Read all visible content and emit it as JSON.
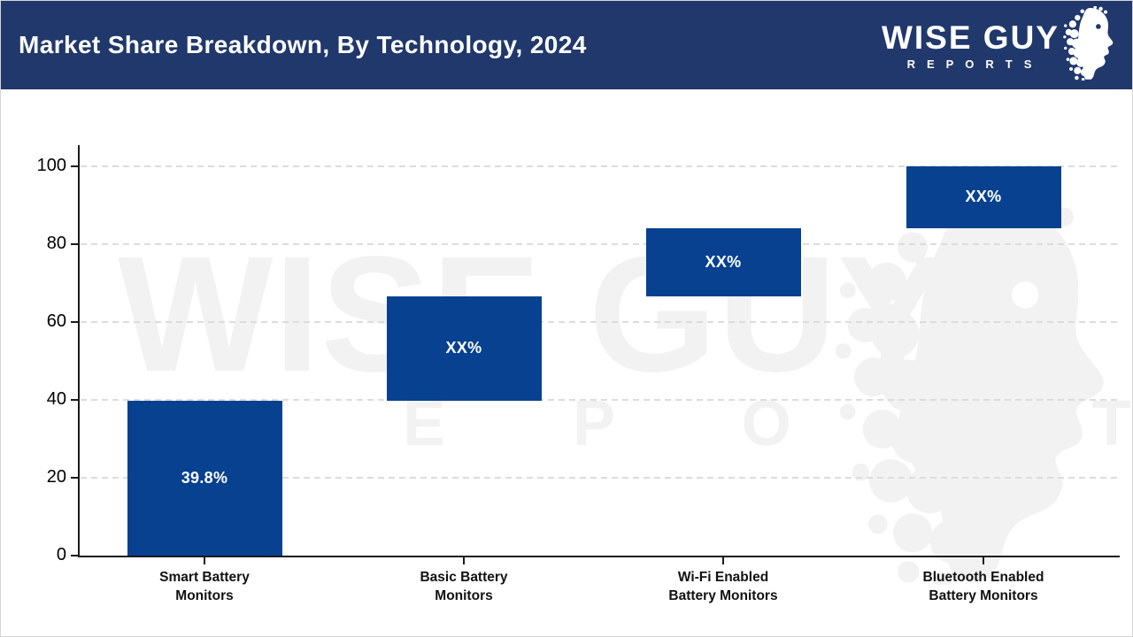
{
  "header": {
    "title": "Market Share Breakdown, By Technology, 2024",
    "logo": {
      "name": "WISE GUY",
      "subname": "REPORTS"
    }
  },
  "watermark": {
    "line1": "WISE GUY",
    "line2": "R E P O R T S"
  },
  "chart_data": {
    "type": "bar",
    "subtype": "waterfall",
    "title": "Market Share Breakdown, By Technology, 2024",
    "unit": "percent",
    "categories": [
      [
        "Smart Battery",
        "Monitors"
      ],
      [
        "Basic Battery",
        "Monitors"
      ],
      [
        "Wi-Fi Enabled",
        "Battery Monitors"
      ],
      [
        "Bluetooth Enabled",
        "Battery Monitors"
      ]
    ],
    "segments": [
      {
        "category": "Smart Battery Monitors",
        "start": 0,
        "end": 39.8,
        "label": "39.8%"
      },
      {
        "category": "Basic Battery Monitors",
        "start": 39.8,
        "end": 66.7,
        "label": "XX%"
      },
      {
        "category": "Wi-Fi Enabled Battery Monitors",
        "start": 66.7,
        "end": 84.2,
        "label": "XX%"
      },
      {
        "category": "Bluetooth Enabled Battery Monitors",
        "start": 84.2,
        "end": 100,
        "label": "XX%"
      }
    ],
    "ylim": [
      0,
      100
    ],
    "yticks": [
      0,
      20,
      40,
      60,
      80,
      100
    ],
    "grid": "horizontal-dashed",
    "legend": "none",
    "colors": {
      "bar": "#07418f",
      "bar_label": "#ffffff",
      "grid": "#dcdcdc",
      "axis": "#1a1a1a",
      "header_bg": "#20386b",
      "watermark": "#f2f2f2"
    }
  }
}
